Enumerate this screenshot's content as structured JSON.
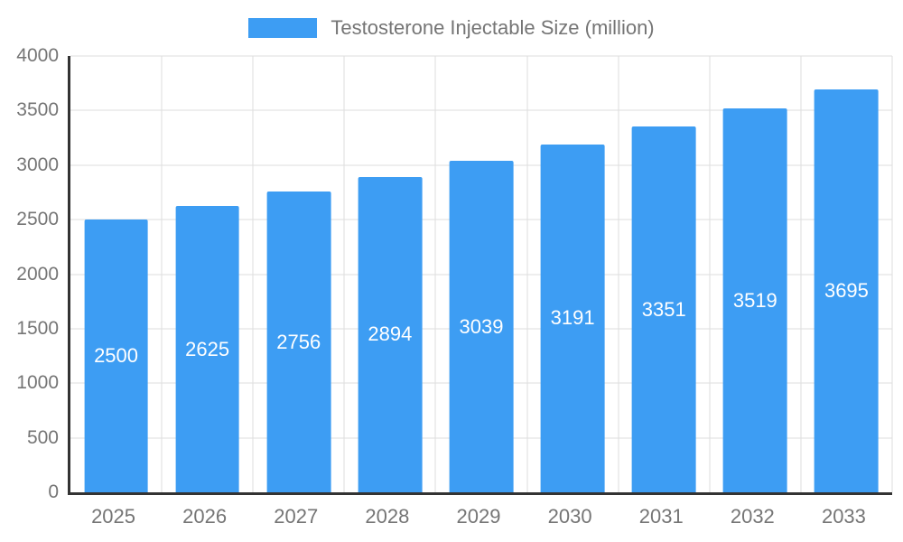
{
  "chart_data": {
    "type": "bar",
    "title": "Testosterone Injectable Size (million)",
    "legend": {
      "position": "top",
      "label": "Testosterone Injectable Size (million)"
    },
    "categories": [
      "2025",
      "2026",
      "2027",
      "2028",
      "2029",
      "2030",
      "2031",
      "2032",
      "2033"
    ],
    "values": [
      2500,
      2625,
      2756,
      2894,
      3039,
      3191,
      3351,
      3519,
      3695
    ],
    "xlabel": "",
    "ylabel": "",
    "ylim": [
      0,
      4000
    ],
    "yticks": [
      0,
      500,
      1000,
      1500,
      2000,
      2500,
      3000,
      3500,
      4000
    ],
    "grid": true,
    "bar_labels_inside": true,
    "colors": {
      "bar": "#3d9df3",
      "bar_label": "#ffffff",
      "axis": "#333333",
      "gridline": "#dddddd",
      "tick_label": "#757575",
      "legend_text": "#757575",
      "background": "#ffffff"
    }
  }
}
